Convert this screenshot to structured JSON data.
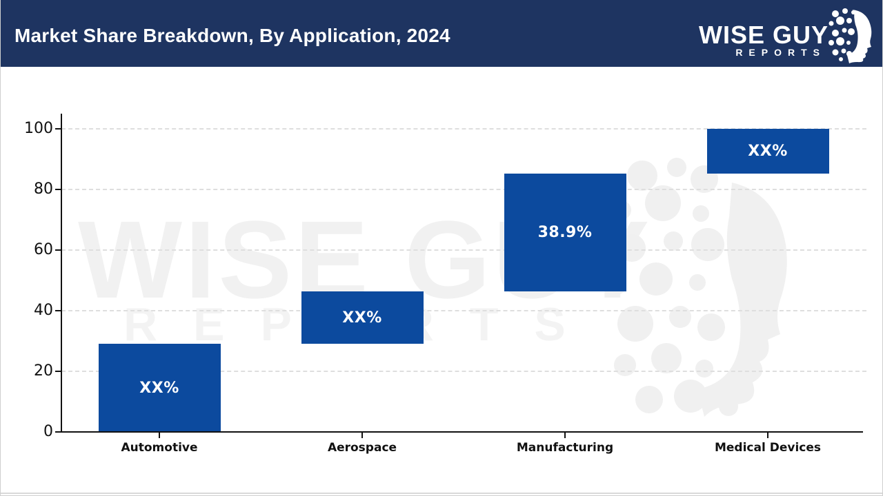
{
  "header": {
    "title": "Market Share Breakdown, By Application, 2024",
    "bg_color": "#1e3461"
  },
  "logo": {
    "name_line": "WISE GUY",
    "sub_line": "REPORTS"
  },
  "watermark": {
    "name_line": "WISE GUY",
    "sub_line": "REPORTS"
  },
  "chart_data": {
    "type": "bar",
    "subtype": "floating-waterfall",
    "title": "Market Share Breakdown, By Application, 2024",
    "categories": [
      "Automotive",
      "Aerospace",
      "Manufacturing",
      "Medical Devices"
    ],
    "series": [
      {
        "name": "Market Share",
        "starts": [
          0,
          29,
          46.4,
          85.3
        ],
        "ends": [
          29,
          46.4,
          85.3,
          100
        ]
      }
    ],
    "values": [
      29,
      17.4,
      38.9,
      14.7
    ],
    "bar_labels": [
      "XX%",
      "XX%",
      "38.9%",
      "XX%"
    ],
    "bar_color": "#0c4a9e",
    "label_color": "#ffffff",
    "xlabel": "",
    "ylabel": "",
    "ylim": [
      0,
      100
    ],
    "yticks": [
      0,
      20,
      40,
      60,
      80,
      100
    ],
    "grid": "horizontal-dashed",
    "gridline_color": "#dedede",
    "legend": "none"
  }
}
